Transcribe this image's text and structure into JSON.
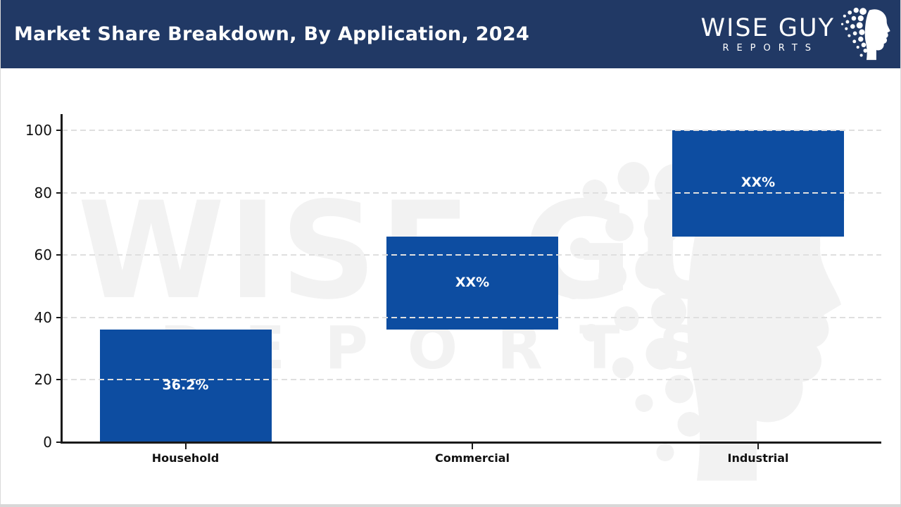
{
  "header": {
    "title": "Market Share Breakdown, By Application, 2024",
    "logo": {
      "line1": "WISE GUY",
      "line2": "REPORTS"
    }
  },
  "watermark": {
    "line1": "WISE GUY",
    "line2": "REPORTS"
  },
  "colors": {
    "header_bg": "#213965",
    "bar": "#0d4da1",
    "bar_label": "#ffffff",
    "grid": "#dfdfdf",
    "axis": "#1a1a1a",
    "watermark": "#f2f2f2",
    "frame_edge": "#d8d8d8"
  },
  "chart_data": {
    "type": "bar",
    "subtype": "floating-waterfall",
    "title": "Market Share Breakdown, By Application, 2024",
    "categories": [
      "Household",
      "Commercial",
      "Industrial"
    ],
    "series": [
      {
        "name": "Market Share",
        "segments": [
          {
            "category": "Household",
            "start": 0,
            "end": 36.2,
            "label": "36.2%"
          },
          {
            "category": "Commercial",
            "start": 36.2,
            "end": 66,
            "label": "XX%"
          },
          {
            "category": "Industrial",
            "start": 66,
            "end": 100,
            "label": "XX%"
          }
        ]
      }
    ],
    "xlabel": "",
    "ylabel": "",
    "ylim": [
      0,
      100
    ],
    "yticks": [
      0,
      20,
      40,
      60,
      80,
      100
    ],
    "grid": "horizontal-dashed, drawn above bars",
    "legend": "none"
  }
}
